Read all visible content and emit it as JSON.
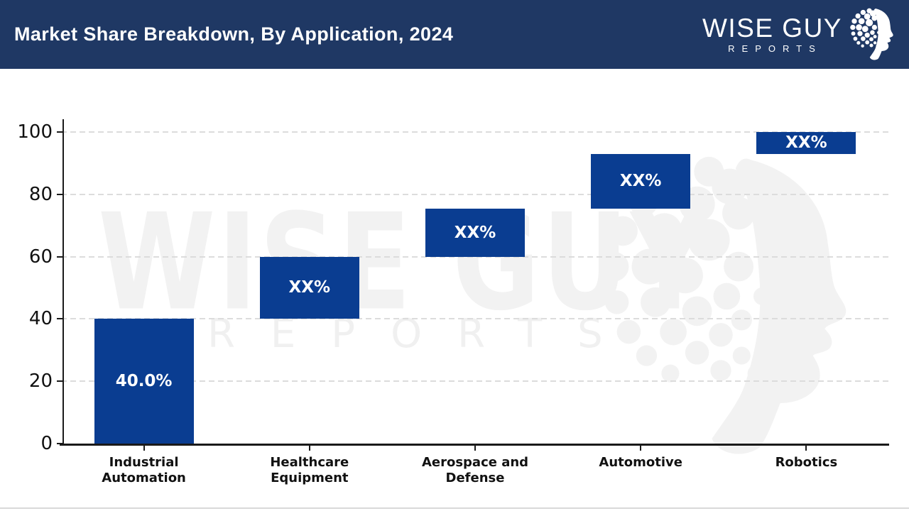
{
  "header": {
    "title": "Market Share Breakdown, By Application, 2024",
    "background_color": "#1f3864",
    "logo": {
      "primary": "WISE GUY",
      "secondary": "REPORTS",
      "icon": "dotted-head-profile-icon"
    }
  },
  "watermark": {
    "primary": "WISE GUY",
    "secondary": "REPORTS",
    "icon": "dotted-head-profile-icon",
    "color": "#f2f2f2"
  },
  "chart_data": {
    "type": "bar",
    "subtype": "waterfall",
    "title": "Market Share Breakdown, By Application, 2024",
    "categories": [
      "Industrial Automation",
      "Healthcare Equipment",
      "Aerospace and Defense",
      "Automotive",
      "Robotics"
    ],
    "category_lines": [
      [
        "Industrial",
        "Automation"
      ],
      [
        "Healthcare",
        "Equipment"
      ],
      [
        "Aerospace and",
        "Defense"
      ],
      [
        "Automotive"
      ],
      [
        "Robotics"
      ]
    ],
    "segments": [
      {
        "category": "Industrial Automation",
        "start": 0,
        "end": 40,
        "label": "40.0%"
      },
      {
        "category": "Healthcare Equipment",
        "start": 40,
        "end": 60,
        "label": "XX%"
      },
      {
        "category": "Aerospace and Defense",
        "start": 60,
        "end": 75.5,
        "label": "XX%"
      },
      {
        "category": "Automotive",
        "start": 75.5,
        "end": 93,
        "label": "XX%"
      },
      {
        "category": "Robotics",
        "start": 93,
        "end": 100,
        "label": "XX%"
      }
    ],
    "xlabel": "",
    "ylabel": "",
    "y_ticks": [
      0,
      20,
      40,
      60,
      80,
      100
    ],
    "ylim": [
      0,
      100
    ],
    "bar_color": "#0a3d91",
    "bar_label_color": "#ffffff",
    "grid": "horizontal-dashed",
    "gridline_color": "#dcdcdc",
    "axis_color": "#1a1a1a",
    "legend_position": "none"
  }
}
